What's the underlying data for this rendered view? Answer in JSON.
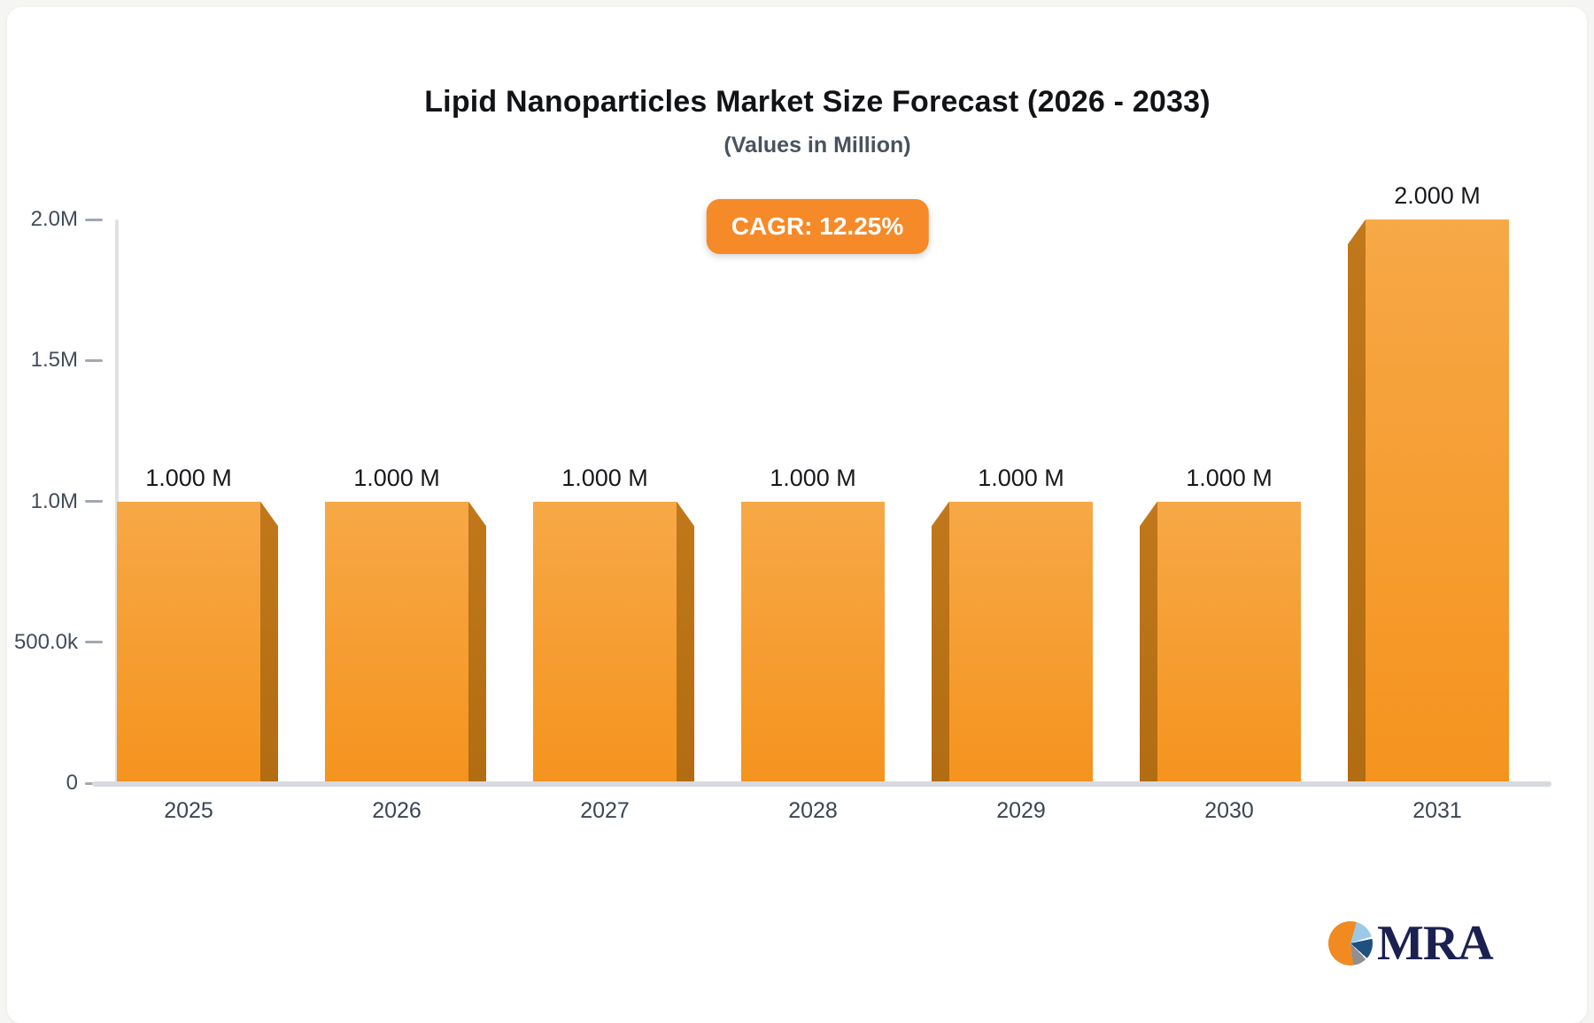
{
  "title": "Lipid Nanoparticles Market Size Forecast (2026 - 2033)",
  "subtitle": "(Values in Million)",
  "badge": {
    "label": "CAGR: 12.25%"
  },
  "logo": {
    "text": "MRA"
  },
  "colors": {
    "accent_orange": "#F68A28",
    "bar_face_top": "#F7A847",
    "bar_face_bottom": "#F5931E",
    "bar_side": "#B97116",
    "axis_line": "#DFE1E6",
    "baseline": "#D7DADE",
    "tick_dash": "#A2A8B1",
    "tick_label": "#434C5B",
    "x_label": "#3C4554",
    "value_label": "#17191D",
    "title_color": "#111316",
    "subtitle_color": "#49525F",
    "logo_navy": "#1A2150"
  },
  "chart_data": {
    "type": "bar",
    "title": "Lipid Nanoparticles Market Size Forecast (2026 - 2033)",
    "subtitle": "(Values in Million)",
    "annotation": "CAGR: 12.25%",
    "categories": [
      "2025",
      "2026",
      "2027",
      "2028",
      "2029",
      "2030",
      "2031"
    ],
    "values": [
      1000000,
      1000000,
      1000000,
      1000000,
      1000000,
      1000000,
      2000000
    ],
    "value_labels": [
      "1.000 M",
      "1.000 M",
      "1.000 M",
      "1.000 M",
      "1.000 M",
      "1.000 M",
      "2.000 M"
    ],
    "xlabel": "",
    "ylabel": "",
    "ylim": [
      0,
      2000000
    ],
    "y_ticks": [
      {
        "label": "0",
        "value": 0
      },
      {
        "label": "500.0k",
        "value": 500000
      },
      {
        "label": "1.0M",
        "value": 1000000
      },
      {
        "label": "1.5M",
        "value": 1500000
      },
      {
        "label": "2.0M",
        "value": 2000000
      }
    ],
    "grid": false,
    "legend": false,
    "bar_style": "3d-column",
    "bar_depth_sides": [
      "right",
      "right",
      "right",
      "none",
      "left",
      "left",
      "left"
    ]
  }
}
